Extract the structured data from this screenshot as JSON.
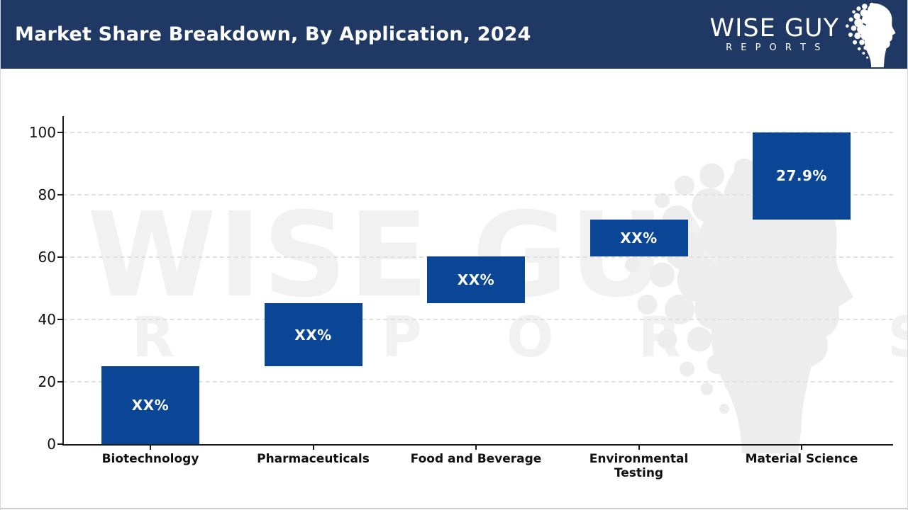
{
  "header": {
    "title": "Market Share Breakdown, By Application, 2024",
    "bg_color": "#1f3864",
    "logo": {
      "wordmark": "WISE GUY",
      "subtext": "R E P O R T S"
    }
  },
  "watermark": {
    "wordmark": "WISE GUY",
    "subtext": "R E P O R T S"
  },
  "chart_data": {
    "type": "bar",
    "subtype": "stacked-waterfall-percentage",
    "title": "Market Share Breakdown, By Application, 2024",
    "xlabel": "",
    "ylabel": "",
    "ylim": [
      0,
      100
    ],
    "yticks": [
      0,
      20,
      40,
      60,
      80,
      100
    ],
    "grid": "horizontal-dashed",
    "grid_color": "#e0e0e0",
    "bar_color": "#0b4596",
    "bar_label_color": "#ffffff",
    "legend": "none",
    "categories": [
      "Biotechnology",
      "Pharmaceuticals",
      "Food and Beverage",
      "Environmental Testing",
      "Material Science"
    ],
    "category_lines": [
      [
        "Biotechnology"
      ],
      [
        "Pharmaceuticals"
      ],
      [
        "Food and Beverage"
      ],
      [
        "Environmental",
        "Testing"
      ],
      [
        "Material Science"
      ]
    ],
    "segments": [
      {
        "category": "Biotechnology",
        "start": 0,
        "end": 25.0,
        "label": "XX%"
      },
      {
        "category": "Pharmaceuticals",
        "start": 25.0,
        "end": 45.2,
        "label": "XX%"
      },
      {
        "category": "Food and Beverage",
        "start": 45.2,
        "end": 60.2,
        "label": "XX%"
      },
      {
        "category": "Environmental Testing",
        "start": 60.2,
        "end": 72.1,
        "label": "XX%"
      },
      {
        "category": "Material Science",
        "start": 72.1,
        "end": 100,
        "label": "27.9%"
      }
    ]
  }
}
